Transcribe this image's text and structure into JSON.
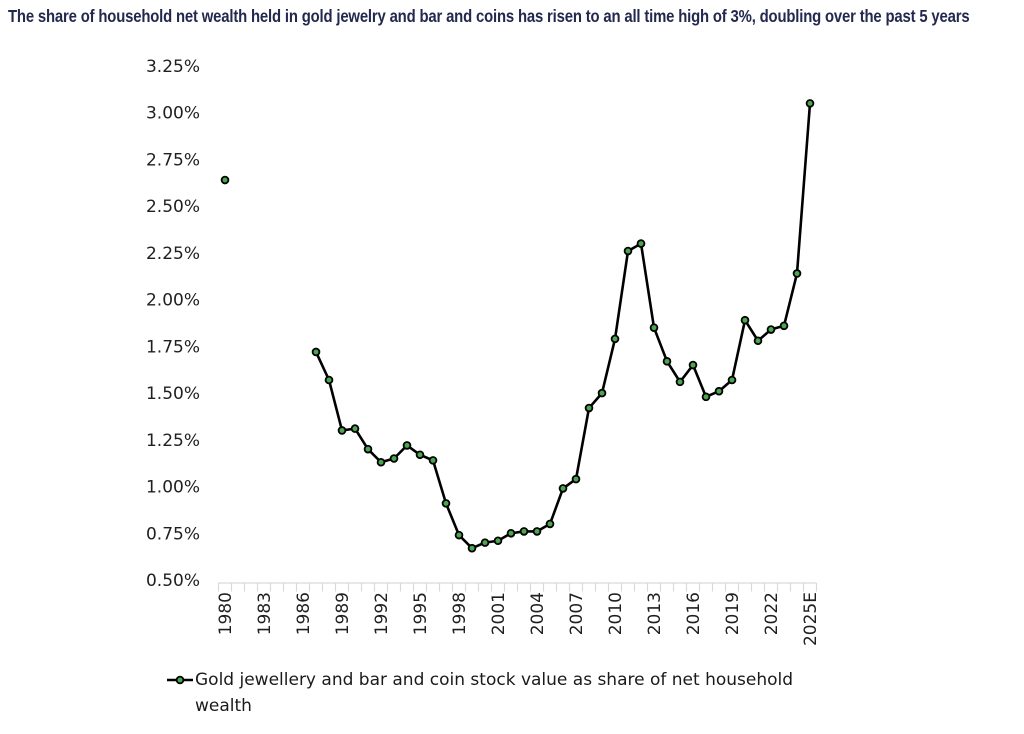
{
  "title": "The share of household net wealth held in gold jewelry and bar and coins has risen to an all time high of 3%, doubling over the past 5 years",
  "chart_data": {
    "type": "line",
    "title": "The share of household net wealth held in gold jewelry and bar and coins has risen to an all time high of 3%, doubling over the past 5 years",
    "xlabel": "",
    "ylabel": "",
    "grid": false,
    "legend_position": "bottom-left",
    "marker": "circle",
    "x_range": [
      1980,
      2025
    ],
    "y_range": [
      0.5,
      3.25
    ],
    "y_tick_step": 0.25,
    "y_tick_labels": [
      "0.50%",
      "0.75%",
      "1.00%",
      "1.25%",
      "1.50%",
      "1.75%",
      "2.00%",
      "2.25%",
      "2.50%",
      "2.75%",
      "3.00%",
      "3.25%"
    ],
    "x_label_start": 1980,
    "x_label_step": 3,
    "x_tick_labels": [
      "1980",
      "1983",
      "1986",
      "1989",
      "1992",
      "1995",
      "1998",
      "2001",
      "2004",
      "2007",
      "2010",
      "2013",
      "2016",
      "2019",
      "2022",
      "2025E"
    ],
    "series": [
      {
        "name": "Gold jewellery and bar and coin stock value as share of net household wealth",
        "x": [
          1987,
          1988,
          1989,
          1990,
          1991,
          1992,
          1993,
          1994,
          1995,
          1996,
          1997,
          1998,
          1999,
          2000,
          2001,
          2002,
          2003,
          2004,
          2005,
          2006,
          2007,
          2008,
          2009,
          2010,
          2011,
          2012,
          2013,
          2014,
          2015,
          2016,
          2017,
          2018,
          2019,
          2020,
          2021,
          2022,
          2023,
          2024,
          2025
        ],
        "y": [
          1.72,
          1.57,
          1.3,
          1.31,
          1.2,
          1.13,
          1.15,
          1.22,
          1.17,
          1.14,
          0.91,
          0.74,
          0.67,
          0.7,
          0.71,
          0.75,
          0.76,
          0.76,
          0.8,
          0.99,
          1.04,
          1.42,
          1.5,
          1.79,
          2.26,
          2.3,
          1.85,
          1.67,
          1.56,
          1.65,
          1.48,
          1.51,
          1.57,
          1.89,
          1.78,
          1.84,
          1.86,
          2.14,
          3.05
        ]
      }
    ],
    "isolated_points": [
      {
        "x": 1980,
        "y": 2.64
      }
    ]
  },
  "colors": {
    "line": "#000000",
    "marker_fill": "#4ca64f",
    "marker_stroke": "#000000",
    "axis": "#d9d9d9",
    "title": "#23294e",
    "tick_label": "#1f1f1f",
    "background": "#ffffff"
  }
}
